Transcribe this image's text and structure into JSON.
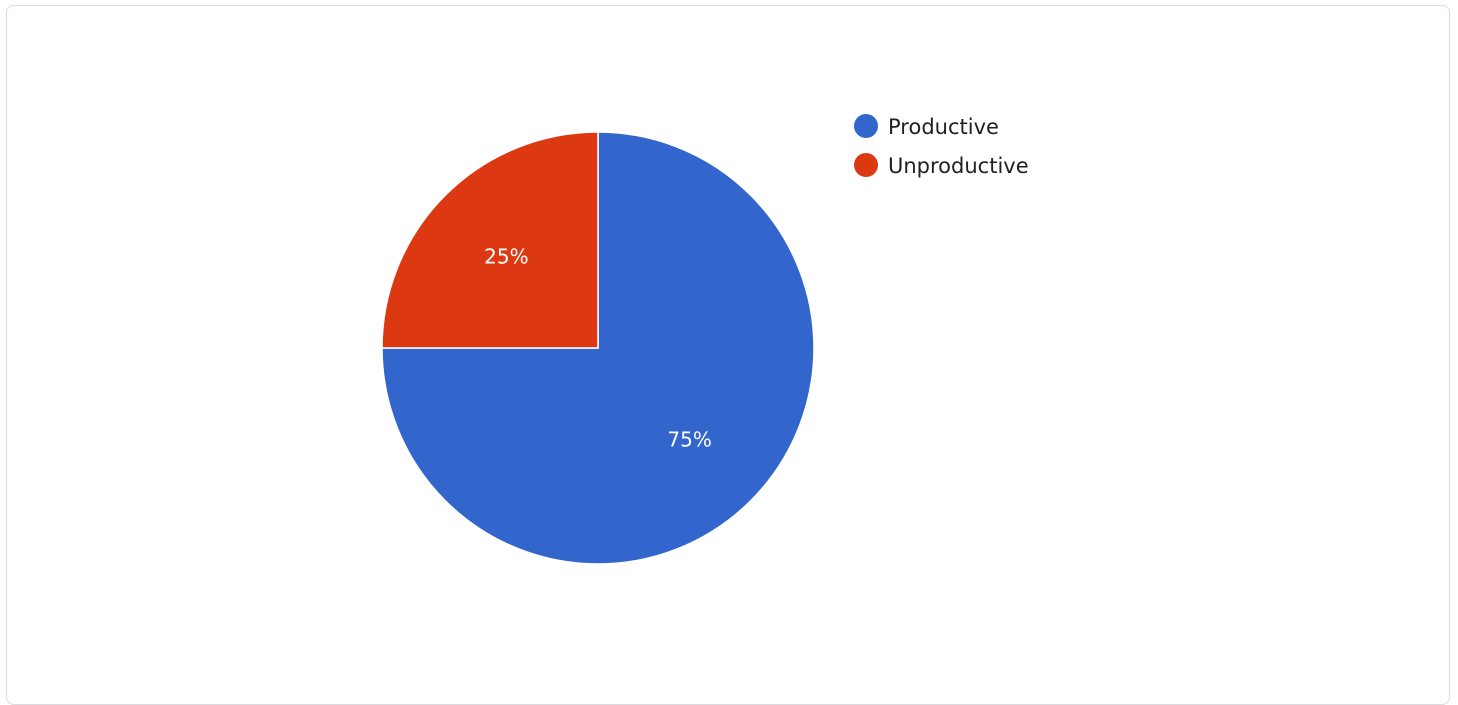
{
  "chart_data": {
    "type": "pie",
    "categories": [
      "Productive",
      "Unproductive"
    ],
    "values": [
      75,
      25
    ],
    "labels": [
      "75%",
      "25%"
    ],
    "colors": [
      "#3366cc",
      "#dc3912"
    ],
    "legend_position": "right"
  }
}
